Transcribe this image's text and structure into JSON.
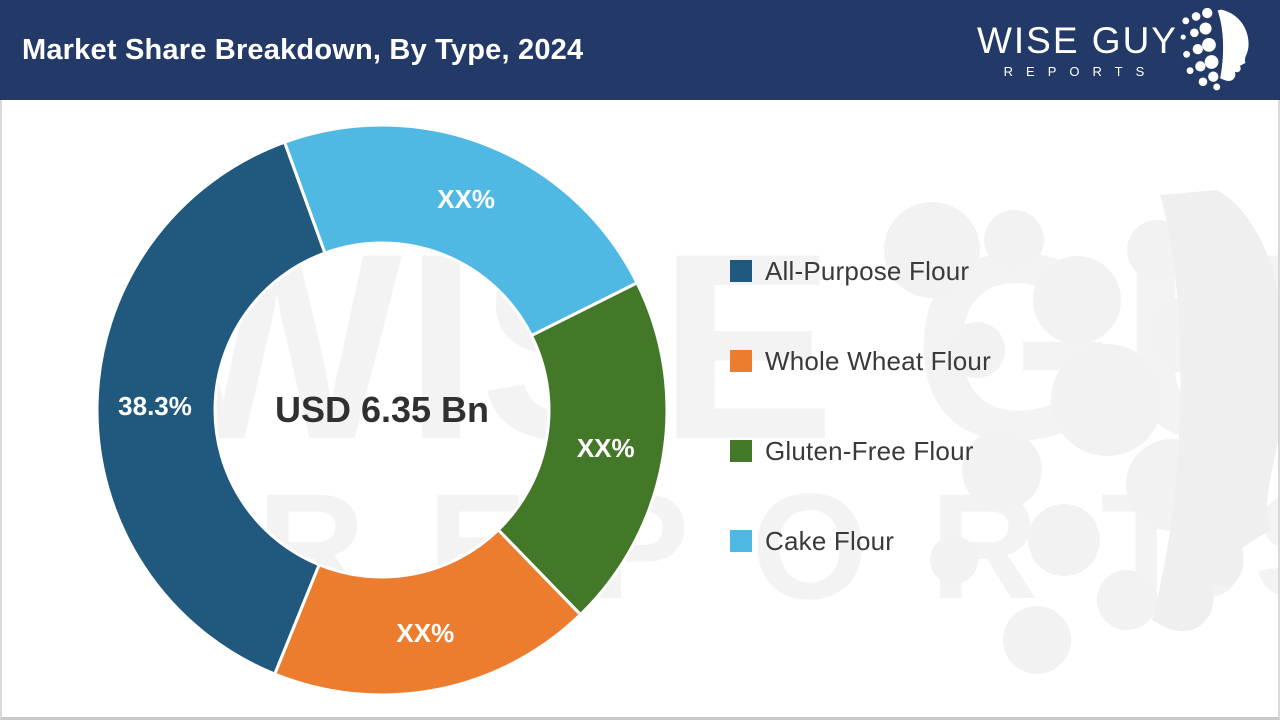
{
  "header": {
    "title": "Market Share Breakdown, By Type, 2024",
    "logo": {
      "name": "WISE GUY",
      "sub": "REPORTS"
    }
  },
  "watermark": {
    "name": "WISE GUY",
    "sub": "REPORTS"
  },
  "chart_data": {
    "type": "donut",
    "title": "Market Share Breakdown, By Type, 2024",
    "center_label": "USD 6.35 Bn",
    "start_angle_deg": -20,
    "units": "percent market share",
    "segments": [
      {
        "label": "Cake Flour",
        "value_pct": 23.2,
        "data_label": "XX%",
        "color": "#4FB9E3"
      },
      {
        "label": "Gluten-Free Flour",
        "value_pct": 20.1,
        "data_label": "XX%",
        "color": "#447829"
      },
      {
        "label": "Whole Wheat Flour",
        "value_pct": 18.4,
        "data_label": "XX%",
        "color": "#ED7D2E"
      },
      {
        "label": "All-Purpose Flour",
        "value_pct": 38.3,
        "data_label": "38.3%",
        "color": "#21587E"
      }
    ],
    "legend": [
      {
        "label": "All-Purpose Flour",
        "color": "#21587E"
      },
      {
        "label": "Whole Wheat Flour",
        "color": "#ED7D2E"
      },
      {
        "label": "Gluten-Free Flour",
        "color": "#447829"
      },
      {
        "label": "Cake Flour",
        "color": "#4FB9E3"
      }
    ],
    "legend_position": "right"
  },
  "colors": {
    "header_bg": "#233A68",
    "segment_label_text": "#FFFFFF",
    "center_label_text": "#303030",
    "legend_text": "#3A3A3A",
    "watermark": "#F3F3F3",
    "frame_border": "#C9C9C9"
  }
}
